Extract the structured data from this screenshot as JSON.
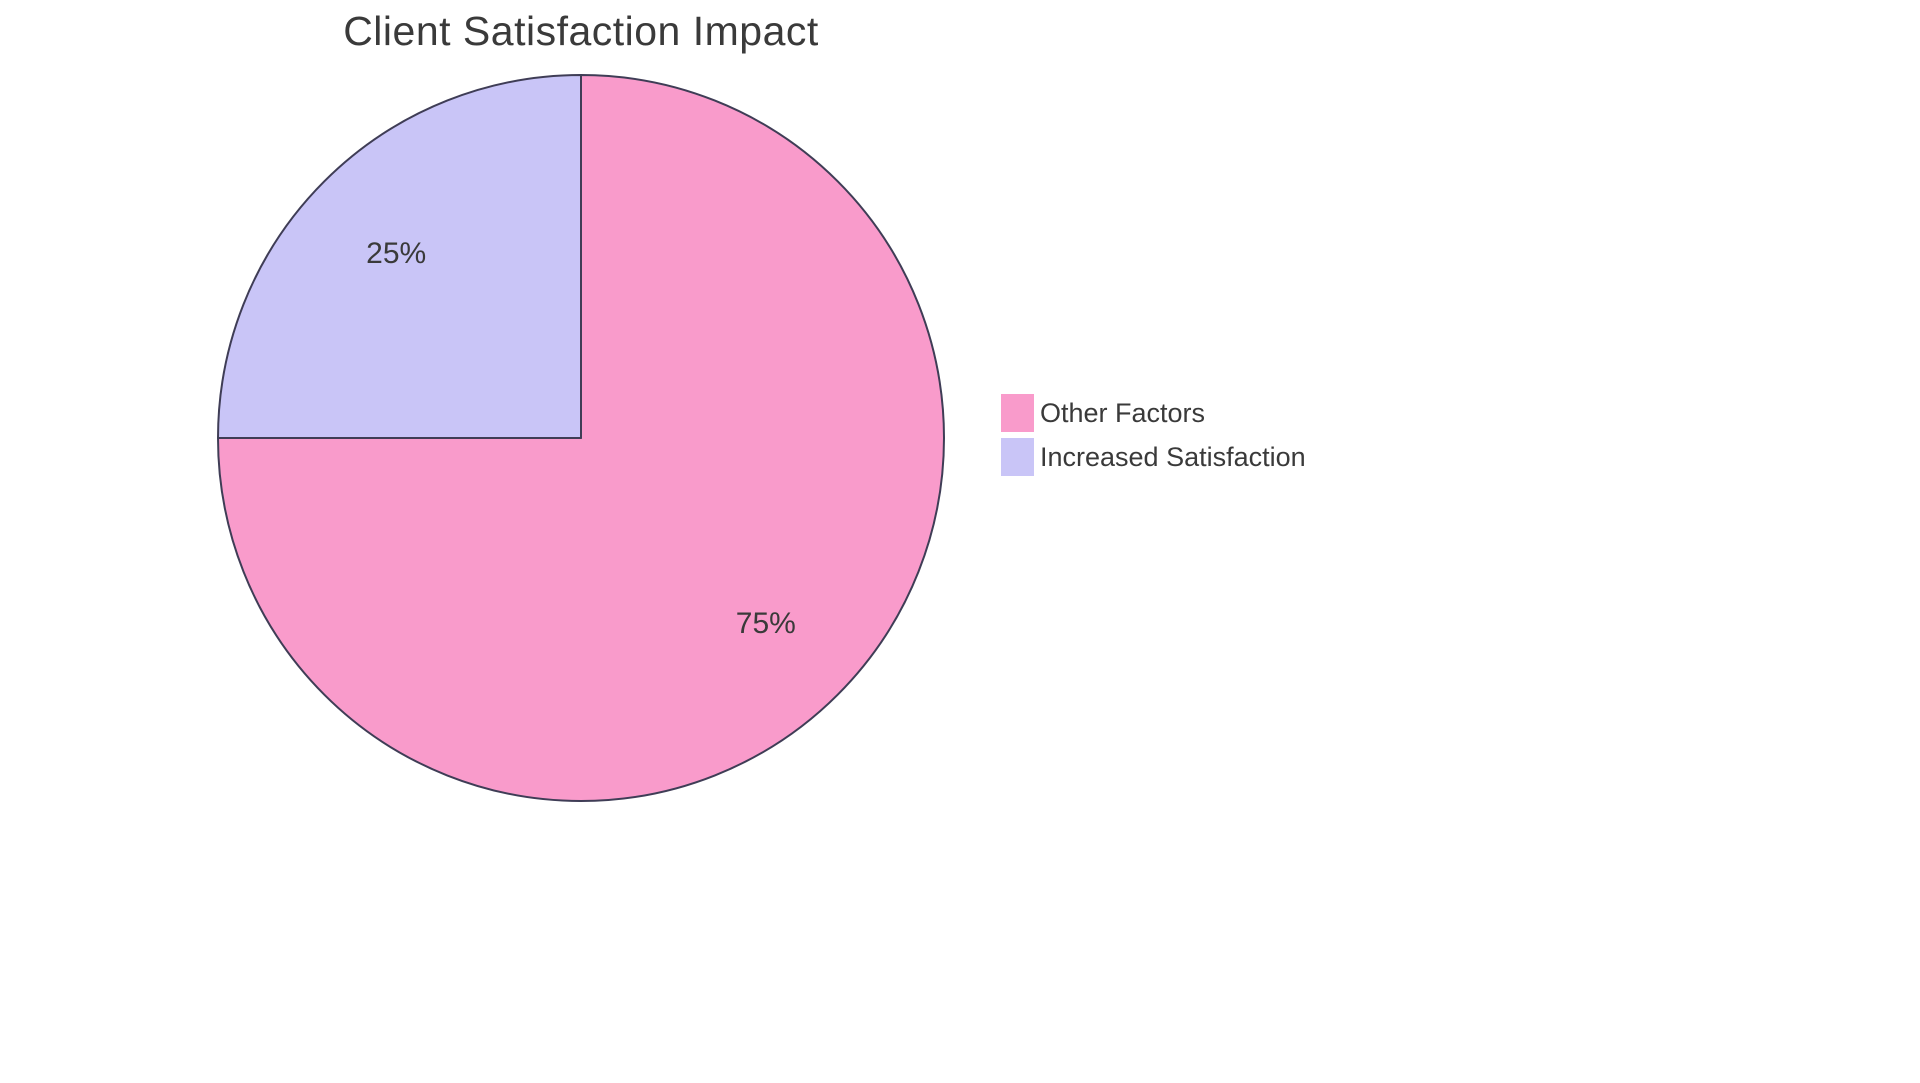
{
  "chart_data": {
    "type": "pie",
    "title": "Client Satisfaction Impact",
    "slices": [
      {
        "label": "Other Factors",
        "value": 75,
        "pct_label": "75%",
        "color": "#F99BCB"
      },
      {
        "label": "Increased Satisfaction",
        "value": 25,
        "pct_label": "25%",
        "color": "#C9C5F7"
      }
    ],
    "start_angle_deg": 0,
    "direction": "clockwise",
    "stroke_color": "#3F3D56",
    "stroke_width": 2,
    "label_color": "#3A3A3A",
    "legend_position": "right",
    "legend": [
      "Other Factors",
      "Increased Satisfaction"
    ]
  }
}
